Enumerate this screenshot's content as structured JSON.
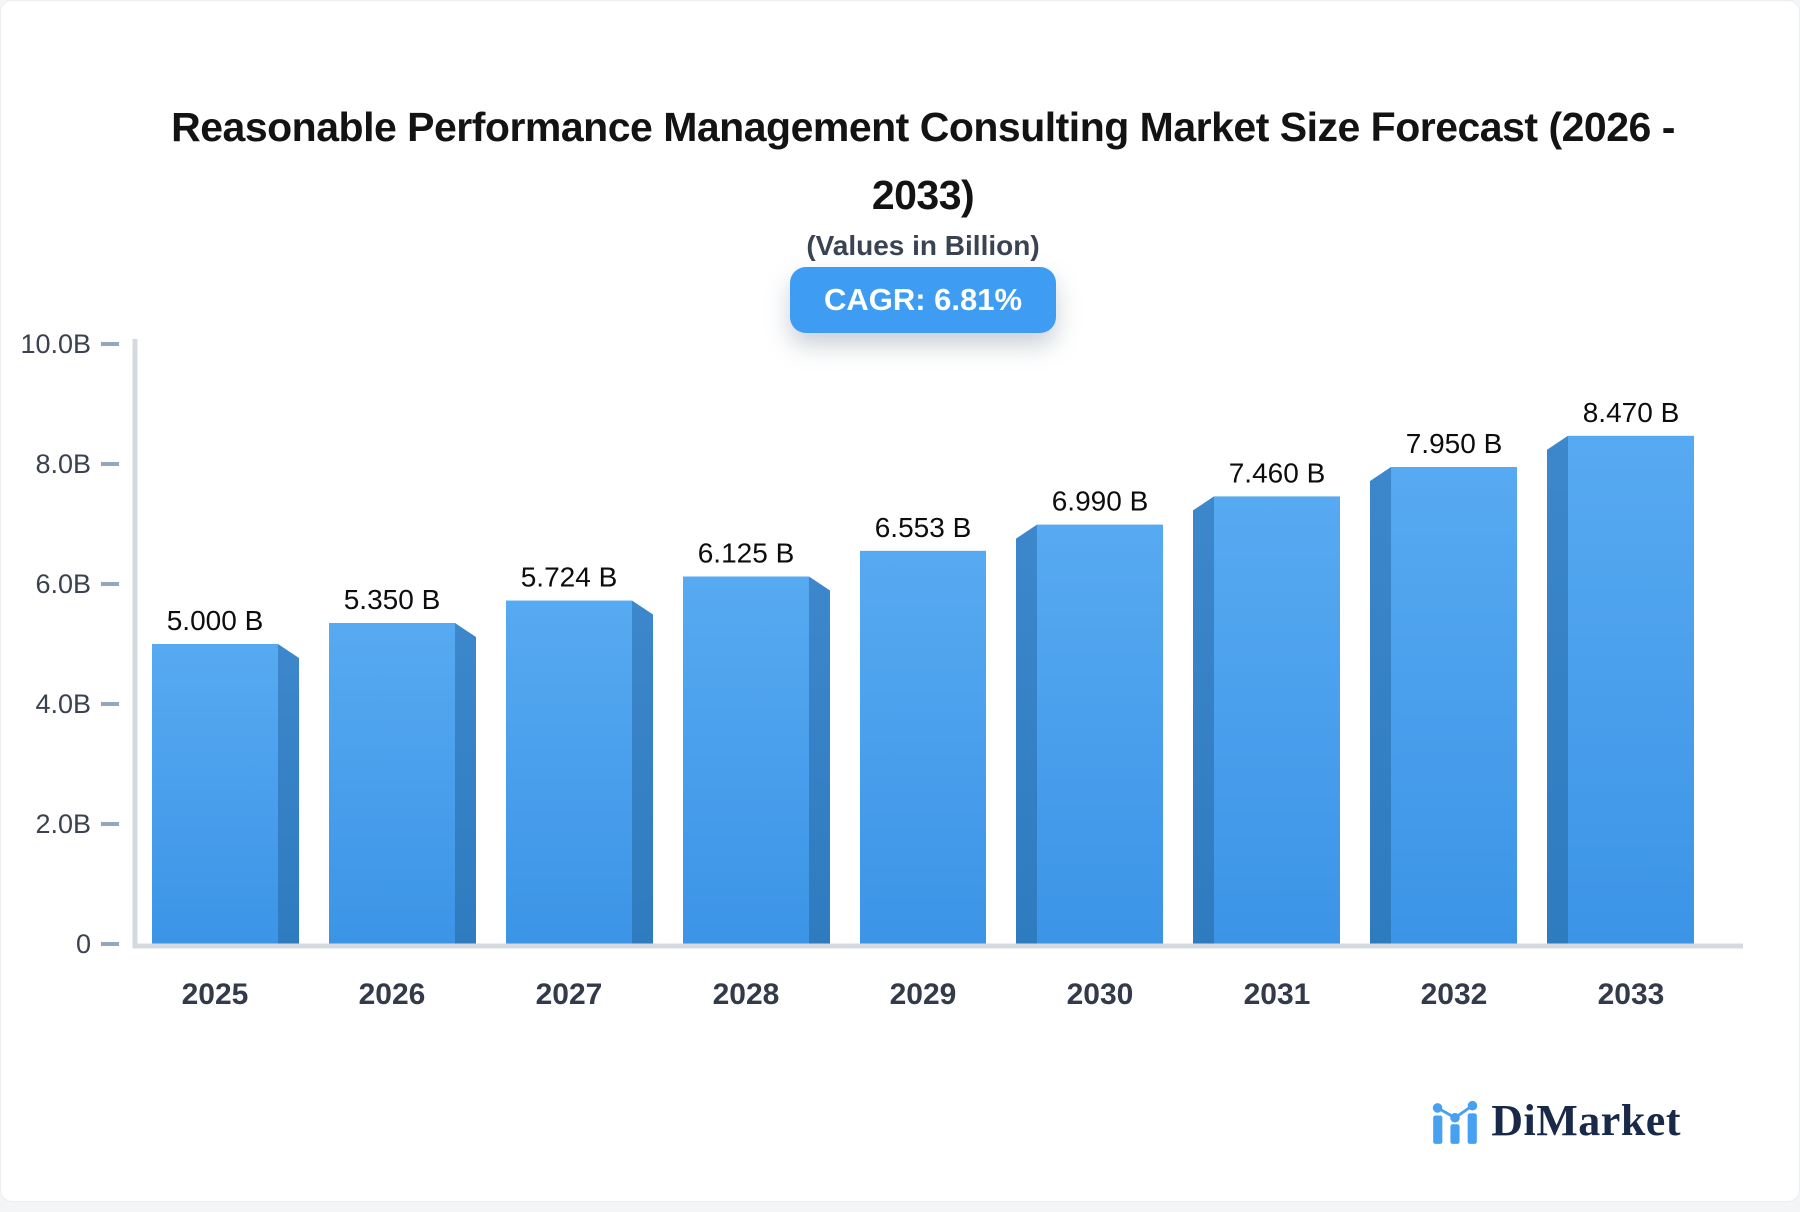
{
  "page": {
    "background": "#F4F5F7",
    "card_background": "#FFFFFF"
  },
  "header": {
    "title": "Reasonable Performance Management Consulting Market Size Forecast (2026 - 2033)",
    "title_lines": [
      "Reasonable Performance Management Consulting Market Size Forecast (2026 -",
      "2033)"
    ],
    "subtitle": "(Values in Billion)",
    "cagr_badge": "CAGR: 6.81%",
    "badge_color": "#3F9CF3",
    "title_color": "#131313",
    "subtitle_color": "#3A4352"
  },
  "chart_data": {
    "type": "bar",
    "title": "Reasonable Performance Management Consulting Market Size Forecast (2026 - 2033)",
    "subtitle": "(Values in Billion)",
    "cagr_pct": 6.81,
    "unit": "Billion",
    "categories": [
      "2025",
      "2026",
      "2027",
      "2028",
      "2029",
      "2030",
      "2031",
      "2032",
      "2033"
    ],
    "values": [
      5.0,
      5.35,
      5.724,
      6.125,
      6.553,
      6.99,
      7.46,
      7.95,
      8.47
    ],
    "value_labels": [
      "5.000 B",
      "5.350 B",
      "5.724 B",
      "6.125 B",
      "6.553 B",
      "6.990 B",
      "7.460 B",
      "7.950 B",
      "8.470 B"
    ],
    "xlabel": "",
    "ylabel": "",
    "ylim": [
      0,
      10
    ],
    "yticks": [
      {
        "value": 0,
        "label": "0"
      },
      {
        "value": 2,
        "label": "2.0B"
      },
      {
        "value": 4,
        "label": "4.0B"
      },
      {
        "value": 6,
        "label": "6.0B"
      },
      {
        "value": 8,
        "label": "8.0B"
      },
      {
        "value": 10,
        "label": "10.0B"
      }
    ],
    "grid": false,
    "legend": false,
    "bar_style": "3d-extruded-center-perspective",
    "colors": {
      "face_top": "#57AAF1",
      "face_bottom": "#3C94E7",
      "side_top": "#3D87CC",
      "side_bottom": "#2E7BC0",
      "axis": "#D6D9DE",
      "tick": "#92A8BE",
      "y_label": "#3A4250",
      "x_label": "#333B4B",
      "value_label": "#0D0D0D"
    }
  },
  "branding": {
    "logo_text": "DiMarket",
    "logo_icon": "mini-bar-chart-icon",
    "logo_text_color": "#19294A",
    "logo_icon_color": "#47A1F3"
  }
}
